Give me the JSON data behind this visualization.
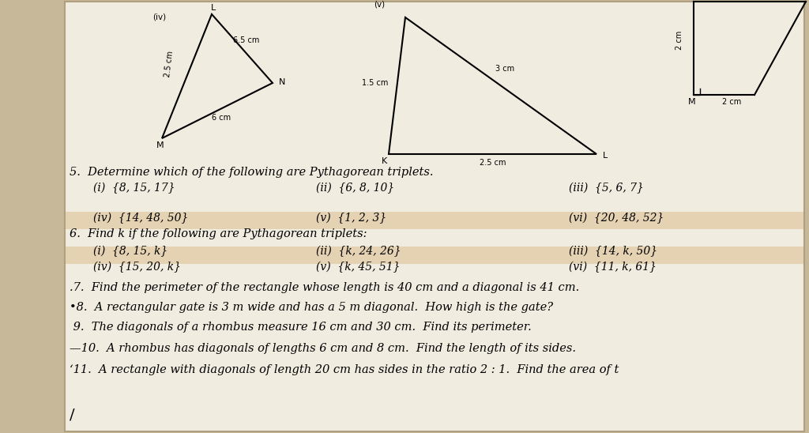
{
  "bg_color": "#c8b89a",
  "page_bg": "#f0ece0",
  "title_5": "5.  Determine which of the following are Pythagorean triplets.",
  "q5_items": [
    [
      "(i)  {8, 15, 17}",
      "(ii)  {6, 8, 10}",
      "(iii)  {5, 6, 7}"
    ],
    [
      "(iv)  {14, 48, 50}",
      "(v)  {1, 2, 3}",
      "(vi)  {20, 48, 52}"
    ]
  ],
  "title_6": "6.  Find k if the following are Pythagorean triplets:",
  "q6_items": [
    [
      "(i)  {8, 15, k}",
      "(ii)  {k, 24, 26}",
      "(iii)  {14, k, 50}"
    ],
    [
      "(iv)  {15, 20, k}",
      "(v)  {k, 45, 51}",
      "(vi)  {11, k, 61}"
    ]
  ],
  "q7": ".7.  Find the perimeter of the rectangle whose length is 40 cm and a diagonal is 41 cm.",
  "q8": "•8.  A rectangular gate is 3 m wide and has a 5 m diagonal.  How high is the gate?",
  "q9": " 9.  The diagonals of a rhombus measure 16 cm and 30 cm.  Find its perimeter.",
  "q10": "—10.  A rhombus has diagonals of lengths 6 cm and 8 cm.  Find the length of its sides.",
  "q11": "‘11.  A rectangle with diagonals of length 20 cm has sides in the ratio 2 : 1.  Find the area of t"
}
